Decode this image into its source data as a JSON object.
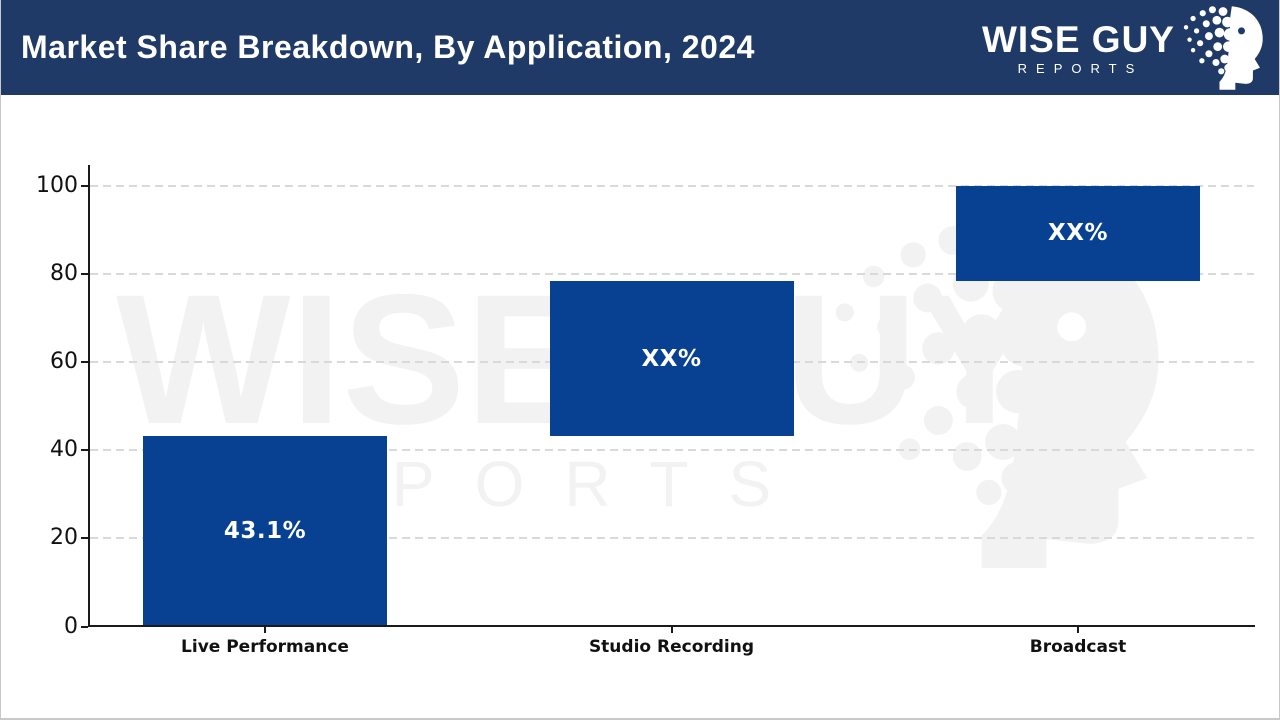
{
  "header": {
    "title": "Market Share Breakdown, By Application, 2024",
    "bg_color": "#203a67",
    "logo": {
      "wordmark": "WISE GUY",
      "subtext": "REPORTS"
    }
  },
  "watermark": {
    "line1": "WISE GUY",
    "line2": "REPORTS"
  },
  "chart_data": {
    "type": "bar",
    "subtype": "waterfall",
    "title": "Market Share Breakdown, By Application, 2024",
    "categories": [
      "Live Performance",
      "Studio Recording",
      "Broadcast"
    ],
    "segments": [
      {
        "category": "Live Performance",
        "start": 0,
        "end": 43.1,
        "label": "43.1%"
      },
      {
        "category": "Studio Recording",
        "start": 43.1,
        "end": 78.4,
        "label": "XX%"
      },
      {
        "category": "Broadcast",
        "start": 78.4,
        "end": 100,
        "label": "XX%"
      }
    ],
    "ylim": [
      0,
      100
    ],
    "yticks": [
      0,
      20,
      40,
      60,
      80,
      100
    ],
    "grid": "horizontal-dashed",
    "legend": "none",
    "bar_color": "#084191",
    "bar_label_color": "#ffffff",
    "axis_color": "#1a1a1a",
    "gridline_color": "#d9d9d9"
  }
}
